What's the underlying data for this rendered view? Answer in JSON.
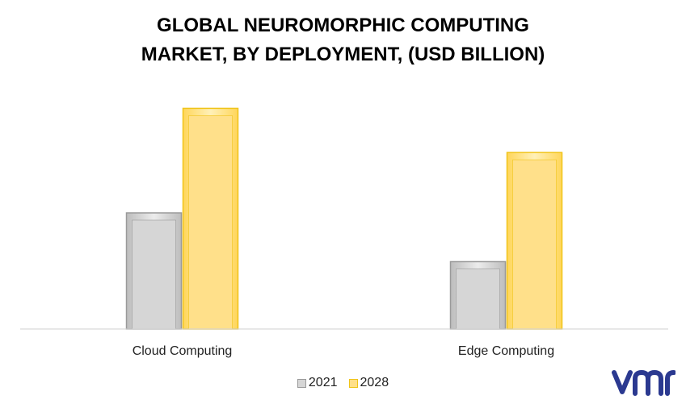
{
  "chart_data": {
    "type": "bar",
    "title_lines": [
      "GLOBAL NEUROMORPHIC COMPUTING",
      "MARKET, BY DEPLOYMENT, (USD BILLION)"
    ],
    "categories": [
      "Cloud Computing",
      "Edge Computing"
    ],
    "series": [
      {
        "name": "2021",
        "values": [
          2.5,
          1.45
        ],
        "color": "#d6d6d6",
        "edge": "#9a9a9a"
      },
      {
        "name": "2028",
        "values": [
          4.75,
          3.8
        ],
        "color": "#ffe08a",
        "edge": "#f0c419"
      }
    ],
    "ylim": [
      0,
      5
    ],
    "grid": false,
    "legend_position": "bottom",
    "xlabel": "",
    "ylabel": ""
  },
  "logo": {
    "text": "vmr",
    "color": "#2b3990"
  }
}
